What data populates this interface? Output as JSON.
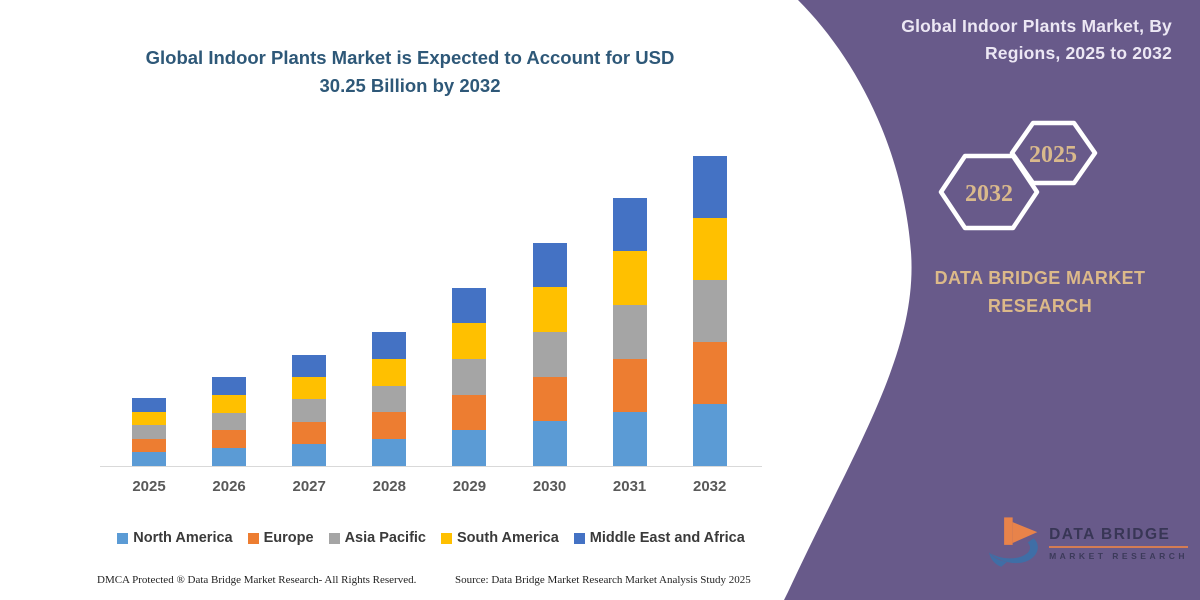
{
  "chart": {
    "title_line1": "Global Indoor Plants Market is Expected to Account for USD",
    "title_line2": "30.25 Billion by 2032"
  },
  "chart_data": {
    "type": "bar",
    "stacked": true,
    "title": "Global Indoor Plants Market is Expected to Account for USD 30.25 Billion by 2032",
    "xlabel": "",
    "ylabel": "",
    "unit": "USD Billion",
    "ylim": [
      0,
      31
    ],
    "grid": false,
    "legend_position": "bottom",
    "categories": [
      "2025",
      "2026",
      "2027",
      "2028",
      "2029",
      "2030",
      "2031",
      "2032"
    ],
    "totals": [
      6.65,
      8.7,
      10.85,
      13.1,
      17.4,
      21.8,
      26.2,
      30.25
    ],
    "series": [
      {
        "name": "North America",
        "color": "#5B9BD5",
        "values": [
          1.33,
          1.74,
          2.17,
          2.62,
          3.48,
          4.36,
          5.24,
          6.05
        ]
      },
      {
        "name": "Europe",
        "color": "#ED7D31",
        "values": [
          1.33,
          1.74,
          2.17,
          2.62,
          3.48,
          4.36,
          5.24,
          6.05
        ]
      },
      {
        "name": "Asia Pacific",
        "color": "#A5A5A5",
        "values": [
          1.33,
          1.74,
          2.17,
          2.62,
          3.48,
          4.36,
          5.24,
          6.05
        ]
      },
      {
        "name": "South America",
        "color": "#FFC000",
        "values": [
          1.33,
          1.74,
          2.17,
          2.62,
          3.48,
          4.36,
          5.24,
          6.05
        ]
      },
      {
        "name": "Middle East and Africa",
        "color": "#4472C4",
        "values": [
          1.33,
          1.74,
          2.17,
          2.62,
          3.48,
          4.36,
          5.24,
          6.05
        ]
      }
    ]
  },
  "panel": {
    "title": "Global Indoor Plants Market, By Regions, 2025 to 2032",
    "hexagon_large": "2032",
    "hexagon_small": "2025",
    "brand_line1": "DATA BRIDGE MARKET",
    "brand_line2": "RESEARCH",
    "background_color": "#685a8a",
    "accent_text_color": "#d9b98c"
  },
  "logo": {
    "line1": "DATA BRIDGE",
    "line2": "MARKET RESEARCH",
    "orange": "#e8834a",
    "blue": "#3f6ea6"
  },
  "footer": {
    "dmca": "DMCA Protected ® Data Bridge Market Research-  All Rights Reserved.",
    "source": "Source: Data Bridge Market Research  Market Analysis Study 2025"
  }
}
